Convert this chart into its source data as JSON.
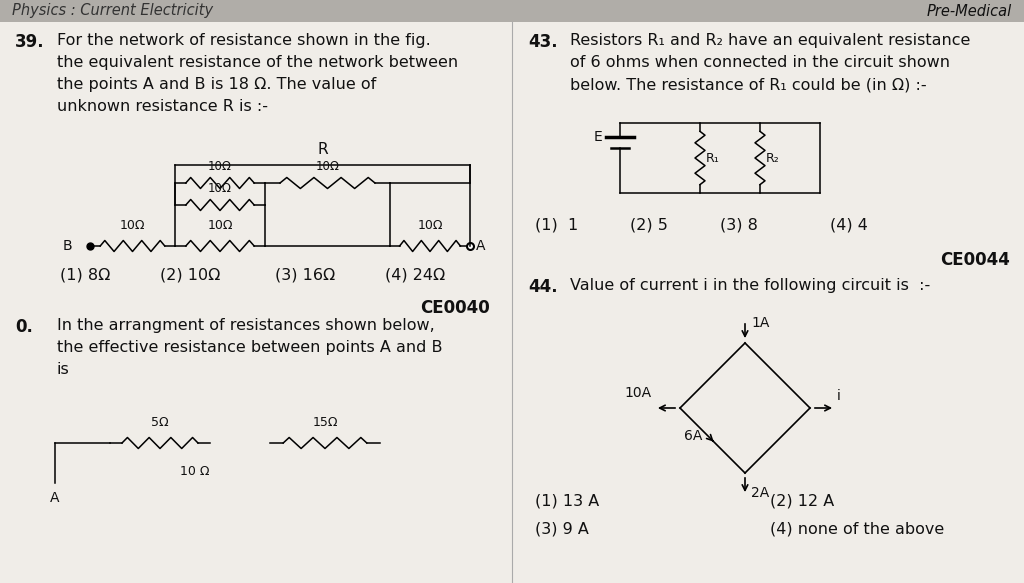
{
  "bg_color": "#e8e5e0",
  "header_bg": "#b0ada8",
  "header_left": "Physics : Current Electricity",
  "header_right": "Pre-Medical",
  "q39_num": "39.",
  "q39_text1": "For the network of resistance shown in the fig.",
  "q39_text2": "the equivalent resistance of the network between",
  "q39_text3": "the points A and B is 18 Ω. The value of",
  "q39_text4": "unknown resistance R is :-",
  "q39_opts": [
    "(1) 8Ω",
    "(2) 10Ω",
    "(3) 16Ω",
    "(4) 24Ω"
  ],
  "q39_code": "CE0040",
  "q40_num": "0.",
  "q40_text1": "In the arrangment of resistances shown below,",
  "q40_text2": "the effective resistance between points A and B",
  "q40_text3": "is",
  "q43_num": "43.",
  "q43_text1": "Resistors R₁ and R₂ have an equivalent resistance",
  "q43_text2": "of 6 ohms when connected in the circuit shown",
  "q43_text3": "below. The resistance of R₁ could be (in Ω) :-",
  "q43_opts": [
    "(1)  1",
    "(2) 5",
    "(3) 8",
    "(4) 4"
  ],
  "q43_code": "CE0044",
  "q44_num": "44.",
  "q44_text1": "Value of current i in the following circuit is  :-",
  "q44_opts1": [
    "(1) 13 A",
    "(2) 12 A"
  ],
  "q44_opts2": [
    "(3) 9 A",
    "(4) none of the above"
  ],
  "text_color": "#111111",
  "divider_color": "#999999",
  "white_bg": "#f0ede8"
}
